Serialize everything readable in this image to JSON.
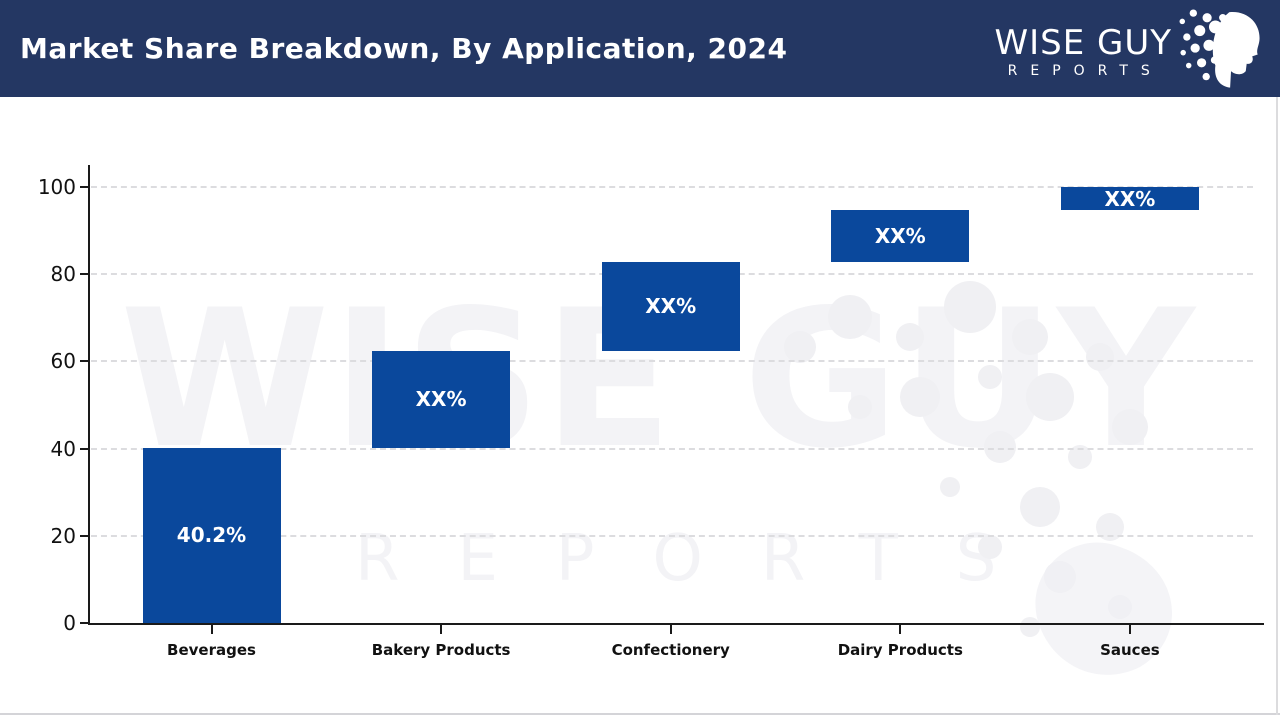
{
  "header": {
    "title": "Market Share Breakdown, By Application, 2024",
    "bg_color": "#243763",
    "logo": {
      "line1": "WISE GUY",
      "line2": "REPORTS"
    }
  },
  "watermark": {
    "line1": "WISE GUY",
    "line2": "REPORTS"
  },
  "chart_data": {
    "type": "waterfall",
    "title": "Market Share Breakdown, By Application, 2024",
    "categories": [
      "Beverages",
      "Bakery Products",
      "Confectionery",
      "Dairy Products",
      "Sauces"
    ],
    "segments": [
      {
        "category": "Beverages",
        "start": 0,
        "end": 40.2,
        "label": "40.2%"
      },
      {
        "category": "Bakery Products",
        "start": 40.2,
        "end": 62.4,
        "label": "XX%"
      },
      {
        "category": "Confectionery",
        "start": 62.4,
        "end": 82.8,
        "label": "XX%"
      },
      {
        "category": "Dairy Products",
        "start": 82.8,
        "end": 94.7,
        "label": "XX%"
      },
      {
        "category": "Sauces",
        "start": 94.7,
        "end": 100.0,
        "label": "XX%"
      }
    ],
    "values_note": "only Beverages value shown; other bars masked as XX%",
    "yticks": [
      0,
      20,
      40,
      60,
      80,
      100
    ],
    "ylim": [
      0,
      105
    ],
    "grid": true,
    "gridline_style": "dashed",
    "gridline_color": "#dcdcdf",
    "axis_color": "#1a1a1a",
    "bar_color": "#0a489c",
    "bar_label_color": "#ffffff",
    "legend": "none",
    "xlabel": "",
    "ylabel": ""
  }
}
